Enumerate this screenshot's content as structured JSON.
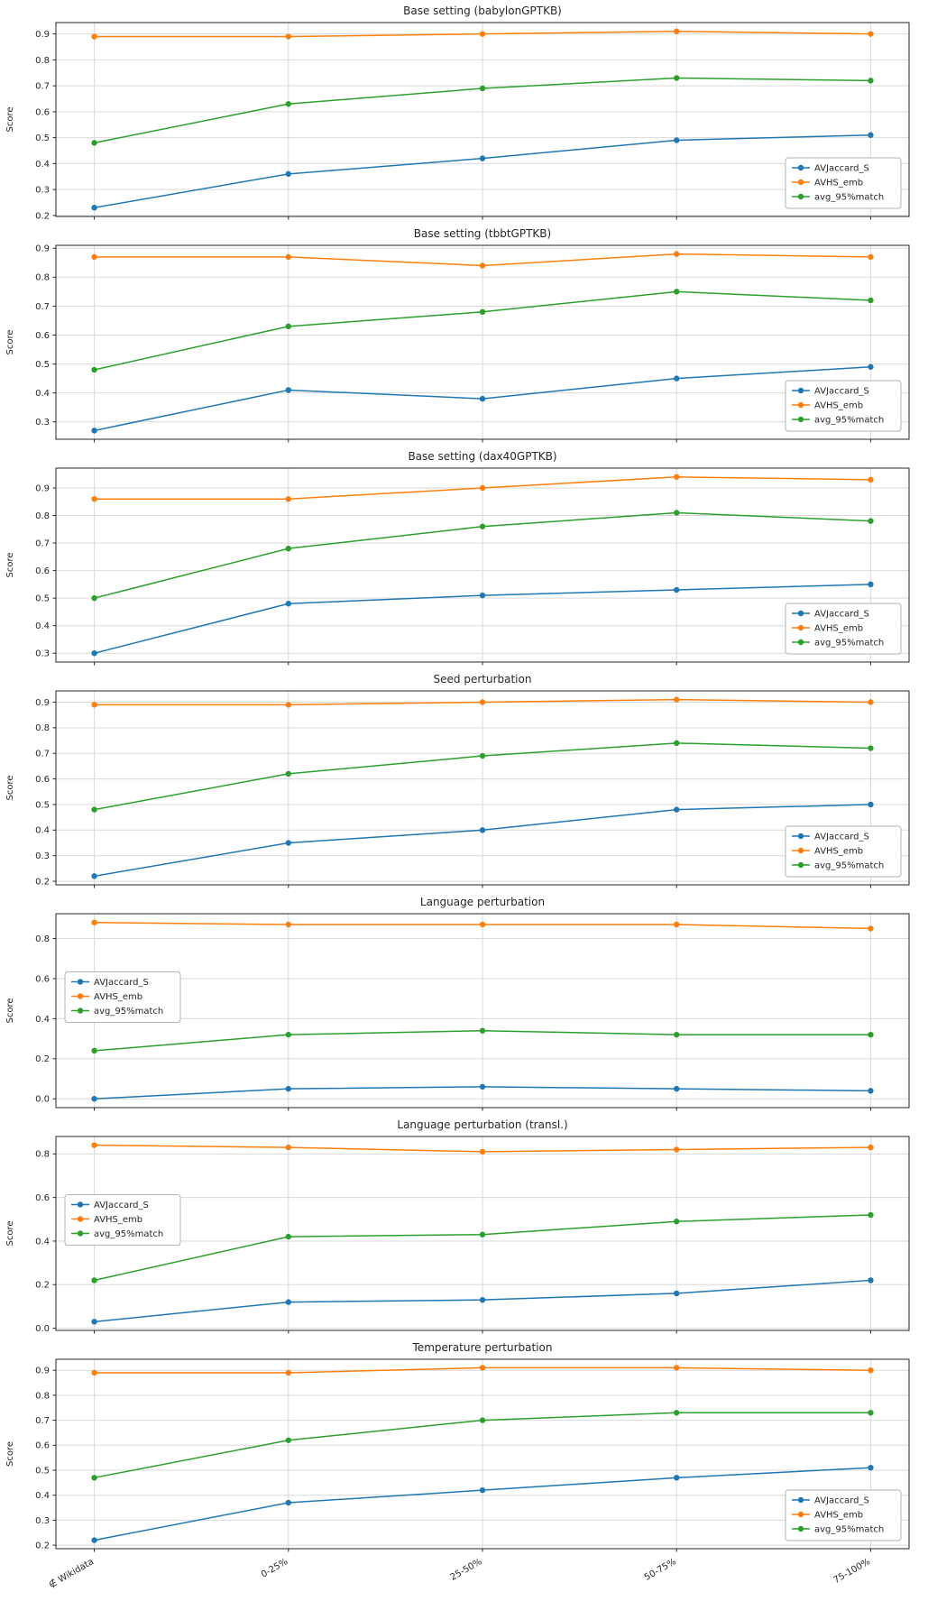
{
  "figure": {
    "background": "#ffffff",
    "axis_color": "#262626",
    "grid_color": "#d9d9d9",
    "legend_border": "#b3b3b3"
  },
  "categories": [
    "∉ Wikidata",
    "0-25%",
    "25-50%",
    "50-75%",
    "75-100%"
  ],
  "chart_data": [
    {
      "type": "line",
      "title": "Base setting (babylonGPTKB)",
      "ylabel": "Score",
      "categories": [
        "∉ Wikidata",
        "0-25%",
        "25-50%",
        "50-75%",
        "75-100%"
      ],
      "series": [
        {
          "name": "AVJaccard_S",
          "color": "#1f77b4",
          "values": [
            0.23,
            0.36,
            0.42,
            0.49,
            0.51
          ]
        },
        {
          "name": "AVHS_emb",
          "color": "#ff7f0e",
          "values": [
            0.89,
            0.89,
            0.9,
            0.91,
            0.9
          ]
        },
        {
          "name": "avg_95%match",
          "color": "#2ca02c",
          "values": [
            0.48,
            0.63,
            0.69,
            0.73,
            0.72
          ]
        }
      ],
      "yticks": [
        0.2,
        0.3,
        0.4,
        0.5,
        0.6,
        0.7,
        0.8,
        0.9
      ],
      "ylim": [
        0.196,
        0.944
      ],
      "grid": true,
      "legend": "lower-right",
      "show_x_labels": false
    },
    {
      "type": "line",
      "title": "Base setting (tbbtGPTKB)",
      "ylabel": "Score",
      "categories": [
        "∉ Wikidata",
        "0-25%",
        "25-50%",
        "50-75%",
        "75-100%"
      ],
      "series": [
        {
          "name": "AVJaccard_S",
          "color": "#1f77b4",
          "values": [
            0.27,
            0.41,
            0.38,
            0.45,
            0.49
          ]
        },
        {
          "name": "AVHS_emb",
          "color": "#ff7f0e",
          "values": [
            0.87,
            0.87,
            0.84,
            0.88,
            0.87
          ]
        },
        {
          "name": "avg_95%match",
          "color": "#2ca02c",
          "values": [
            0.48,
            0.63,
            0.68,
            0.75,
            0.72
          ]
        }
      ],
      "yticks": [
        0.3,
        0.4,
        0.5,
        0.6,
        0.7,
        0.8,
        0.9
      ],
      "ylim": [
        0.24,
        0.91
      ],
      "grid": true,
      "legend": "lower-right",
      "show_x_labels": false
    },
    {
      "type": "line",
      "title": "Base setting (dax40GPTKB)",
      "ylabel": "Score",
      "categories": [
        "∉ Wikidata",
        "0-25%",
        "25-50%",
        "50-75%",
        "75-100%"
      ],
      "series": [
        {
          "name": "AVJaccard_S",
          "color": "#1f77b4",
          "values": [
            0.3,
            0.48,
            0.51,
            0.53,
            0.55
          ]
        },
        {
          "name": "AVHS_emb",
          "color": "#ff7f0e",
          "values": [
            0.86,
            0.86,
            0.9,
            0.94,
            0.93
          ]
        },
        {
          "name": "avg_95%match",
          "color": "#2ca02c",
          "values": [
            0.5,
            0.68,
            0.76,
            0.81,
            0.78
          ]
        }
      ],
      "yticks": [
        0.3,
        0.4,
        0.5,
        0.6,
        0.7,
        0.8,
        0.9
      ],
      "ylim": [
        0.268,
        0.972
      ],
      "grid": true,
      "legend": "lower-right",
      "show_x_labels": false
    },
    {
      "type": "line",
      "title": "Seed perturbation",
      "ylabel": "Score",
      "categories": [
        "∉ Wikidata",
        "0-25%",
        "25-50%",
        "50-75%",
        "75-100%"
      ],
      "series": [
        {
          "name": "AVJaccard_S",
          "color": "#1f77b4",
          "values": [
            0.22,
            0.35,
            0.4,
            0.48,
            0.5
          ]
        },
        {
          "name": "AVHS_emb",
          "color": "#ff7f0e",
          "values": [
            0.89,
            0.89,
            0.9,
            0.91,
            0.9
          ]
        },
        {
          "name": "avg_95%match",
          "color": "#2ca02c",
          "values": [
            0.48,
            0.62,
            0.69,
            0.74,
            0.72
          ]
        }
      ],
      "yticks": [
        0.2,
        0.3,
        0.4,
        0.5,
        0.6,
        0.7,
        0.8,
        0.9
      ],
      "ylim": [
        0.186,
        0.944
      ],
      "grid": true,
      "legend": "lower-right",
      "show_x_labels": false
    },
    {
      "type": "line",
      "title": "Language perturbation",
      "ylabel": "Score",
      "categories": [
        "∉ Wikidata",
        "0-25%",
        "25-50%",
        "50-75%",
        "75-100%"
      ],
      "series": [
        {
          "name": "AVJaccard_S",
          "color": "#1f77b4",
          "values": [
            0.0,
            0.05,
            0.06,
            0.05,
            0.04
          ]
        },
        {
          "name": "AVHS_emb",
          "color": "#ff7f0e",
          "values": [
            0.88,
            0.87,
            0.87,
            0.87,
            0.85
          ]
        },
        {
          "name": "avg_95%match",
          "color": "#2ca02c",
          "values": [
            0.24,
            0.32,
            0.34,
            0.32,
            0.32
          ]
        }
      ],
      "yticks": [
        0.0,
        0.2,
        0.4,
        0.6,
        0.8
      ],
      "ylim": [
        -0.044,
        0.924
      ],
      "grid": true,
      "legend": "center-left",
      "show_x_labels": false
    },
    {
      "type": "line",
      "title": "Language perturbation (transl.)",
      "ylabel": "Score",
      "categories": [
        "∉ Wikidata",
        "0-25%",
        "25-50%",
        "50-75%",
        "75-100%"
      ],
      "series": [
        {
          "name": "AVJaccard_S",
          "color": "#1f77b4",
          "values": [
            0.03,
            0.12,
            0.13,
            0.16,
            0.22
          ]
        },
        {
          "name": "AVHS_emb",
          "color": "#ff7f0e",
          "values": [
            0.84,
            0.83,
            0.81,
            0.82,
            0.83
          ]
        },
        {
          "name": "avg_95%match",
          "color": "#2ca02c",
          "values": [
            0.22,
            0.42,
            0.43,
            0.49,
            0.52
          ]
        }
      ],
      "yticks": [
        0.0,
        0.2,
        0.4,
        0.6,
        0.8
      ],
      "ylim": [
        -0.01,
        0.88
      ],
      "grid": true,
      "legend": "center-left",
      "show_x_labels": false
    },
    {
      "type": "line",
      "title": "Temperature perturbation",
      "ylabel": "Score",
      "categories": [
        "∉ Wikidata",
        "0-25%",
        "25-50%",
        "50-75%",
        "75-100%"
      ],
      "series": [
        {
          "name": "AVJaccard_S",
          "color": "#1f77b4",
          "values": [
            0.22,
            0.37,
            0.42,
            0.47,
            0.51
          ]
        },
        {
          "name": "AVHS_emb",
          "color": "#ff7f0e",
          "values": [
            0.89,
            0.89,
            0.91,
            0.91,
            0.9
          ]
        },
        {
          "name": "avg_95%match",
          "color": "#2ca02c",
          "values": [
            0.47,
            0.62,
            0.7,
            0.73,
            0.73
          ]
        }
      ],
      "yticks": [
        0.2,
        0.3,
        0.4,
        0.5,
        0.6,
        0.7,
        0.8,
        0.9
      ],
      "ylim": [
        0.186,
        0.944
      ],
      "grid": true,
      "legend": "lower-right",
      "show_x_labels": true
    }
  ]
}
